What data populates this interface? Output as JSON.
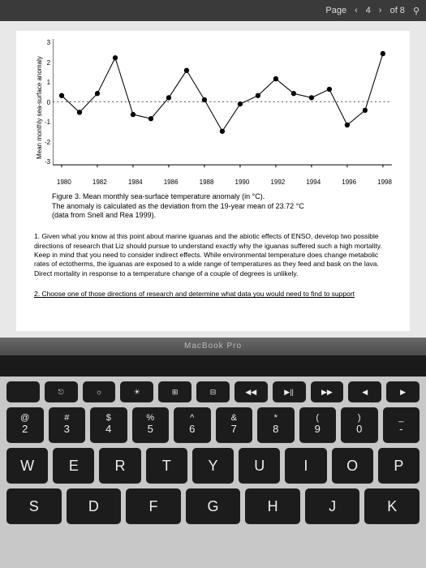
{
  "topbar": {
    "page_label": "Page",
    "prev": "‹",
    "pagecounter": "4",
    "of": "of 8",
    "next": "›",
    "search": "⚲"
  },
  "chart": {
    "type": "line",
    "ylabel": "Mean monthly sea-surface anomaly",
    "ylim": [
      -3,
      3
    ],
    "yticks": [
      -3,
      -2,
      -1,
      0,
      1,
      2,
      3
    ],
    "xticks": [
      "1980",
      "1982",
      "1984",
      "1986",
      "1988",
      "1990",
      "1992",
      "1994",
      "1996",
      "1998"
    ],
    "xrange": [
      1979.5,
      1998.5
    ],
    "points": [
      {
        "x": 1980,
        "y": 0.3
      },
      {
        "x": 1981,
        "y": -0.5
      },
      {
        "x": 1982,
        "y": 0.4
      },
      {
        "x": 1983,
        "y": 2.1
      },
      {
        "x": 1984,
        "y": -0.6
      },
      {
        "x": 1985,
        "y": -0.8
      },
      {
        "x": 1986,
        "y": 0.2
      },
      {
        "x": 1987,
        "y": 1.5
      },
      {
        "x": 1988,
        "y": 0.1
      },
      {
        "x": 1989,
        "y": -1.4
      },
      {
        "x": 1990,
        "y": -0.1
      },
      {
        "x": 1991,
        "y": 0.3
      },
      {
        "x": 1992,
        "y": 1.1
      },
      {
        "x": 1993,
        "y": 0.4
      },
      {
        "x": 1994,
        "y": 0.2
      },
      {
        "x": 1995,
        "y": 0.6
      },
      {
        "x": 1996,
        "y": -1.1
      },
      {
        "x": 1997,
        "y": -0.4
      },
      {
        "x": 1998,
        "y": 2.3
      }
    ],
    "line_color": "#000000",
    "marker_color": "#000000",
    "marker_size": 3,
    "line_width": 1,
    "background_color": "#ffffff",
    "zero_line_dash": "2,3"
  },
  "caption": {
    "l1": "Figure 3.  Mean monthly sea-surface temperature anomaly (in °C).",
    "l2": "The anomaly is calculated as the deviation from the 19-year mean of 23.72 °C",
    "l3": "(data from Snell and Rea 1999)."
  },
  "questions": {
    "q1": "1. Given what you know at this point about marine iguanas and the abiotic effects of ENSO, develop two possible directions of research that Liz should pursue to understand exactly why the iguanas suffered such a high mortality. Keep in mind that you need to consider indirect effects. While environmental temperature does change metabolic rates of ectotherms, the iguanas are exposed to a wide range of temperatures as they feed and bask on the lava. Direct mortality in response to a temperature change of a couple of degrees is unlikely.",
    "q2": "2. Choose one of those directions of research and determine what data you would need to find to support"
  },
  "laptop_label": "MacBook Pro",
  "keys": {
    "fn": [
      "",
      "⎋",
      "☼",
      "☀",
      "⊞",
      "⊟",
      "◀◀",
      "▶||",
      "▶▶",
      "◀",
      "▶"
    ],
    "r1_upper": [
      "@",
      "#",
      "$",
      "%",
      "^",
      "&",
      "*",
      "(",
      ")",
      "_"
    ],
    "r1_lower": [
      "2",
      "3",
      "4",
      "5",
      "6",
      "7",
      "8",
      "9",
      "0",
      "-"
    ],
    "r2": [
      "W",
      "E",
      "R",
      "T",
      "Y",
      "U",
      "I",
      "O",
      "P"
    ],
    "r3": [
      "S",
      "D",
      "F",
      "G",
      "H",
      "J",
      "K"
    ]
  }
}
